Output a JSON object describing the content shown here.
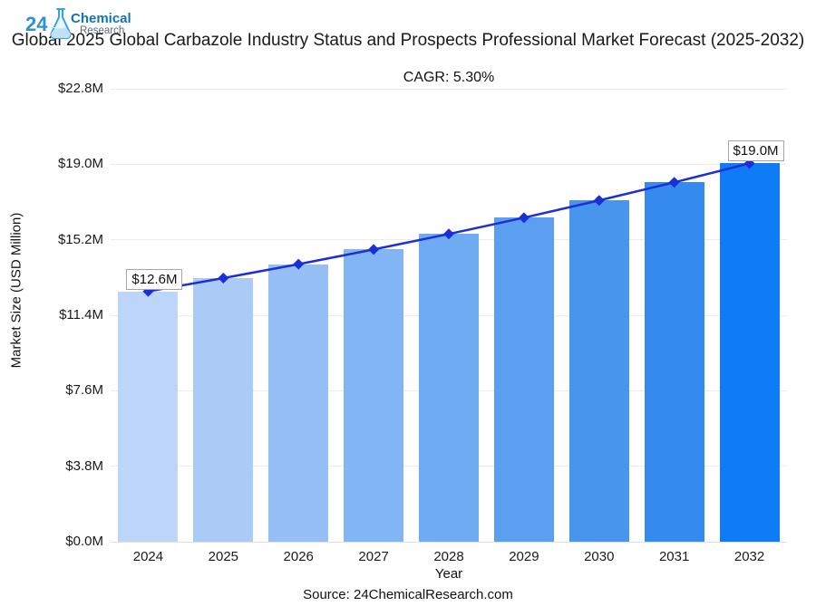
{
  "logo": {
    "number": "24",
    "line1": "Chemical",
    "line2": "Research",
    "accent_blue": "#2e93d4",
    "dark_blue": "#1173b8",
    "gray": "#5e6a72"
  },
  "header": {
    "title": "Global 2025 Global Carbazole Industry Status and Prospects Professional Market Forecast (2025-2032)",
    "subtitle": "CAGR: 5.30%"
  },
  "chart_data": {
    "type": "bar",
    "overlay": "line",
    "categories": [
      "2024",
      "2025",
      "2026",
      "2027",
      "2028",
      "2029",
      "2030",
      "2031",
      "2032"
    ],
    "values": [
      12.6,
      13.27,
      13.97,
      14.71,
      15.49,
      16.31,
      17.18,
      18.09,
      19.04
    ],
    "title": "Global 2025 Global Carbazole Industry Status and Prospects Professional Market Forecast (2025-2032)",
    "subtitle": "CAGR: 5.30%",
    "xlabel": "Year",
    "ylabel": "Market Size (USD Million)",
    "ylim": [
      0,
      22.8
    ],
    "yticks": [
      0,
      3.8,
      7.6,
      11.4,
      15.2,
      19.0,
      22.8
    ],
    "ytick_labels": [
      "$0.0M",
      "$3.8M",
      "$7.6M",
      "$11.4M",
      "$15.2M",
      "$19.0M",
      "$22.8M"
    ],
    "grid": "horizontal",
    "legend": "none",
    "bar_colors": [
      "#bcd5f8",
      "#a9cbf6",
      "#96c0f5",
      "#82b5f3",
      "#6fabf2",
      "#5ba0f0",
      "#4895ee",
      "#348bed",
      "#0f7bf4"
    ],
    "line_color": "#1b2fd8",
    "marker": "diamond",
    "annotations": [
      {
        "index": 0,
        "label": "$12.6M"
      },
      {
        "index": 8,
        "label": "$19.0M"
      }
    ]
  },
  "footer": {
    "source": "Source: 24ChemicalResearch.com"
  }
}
